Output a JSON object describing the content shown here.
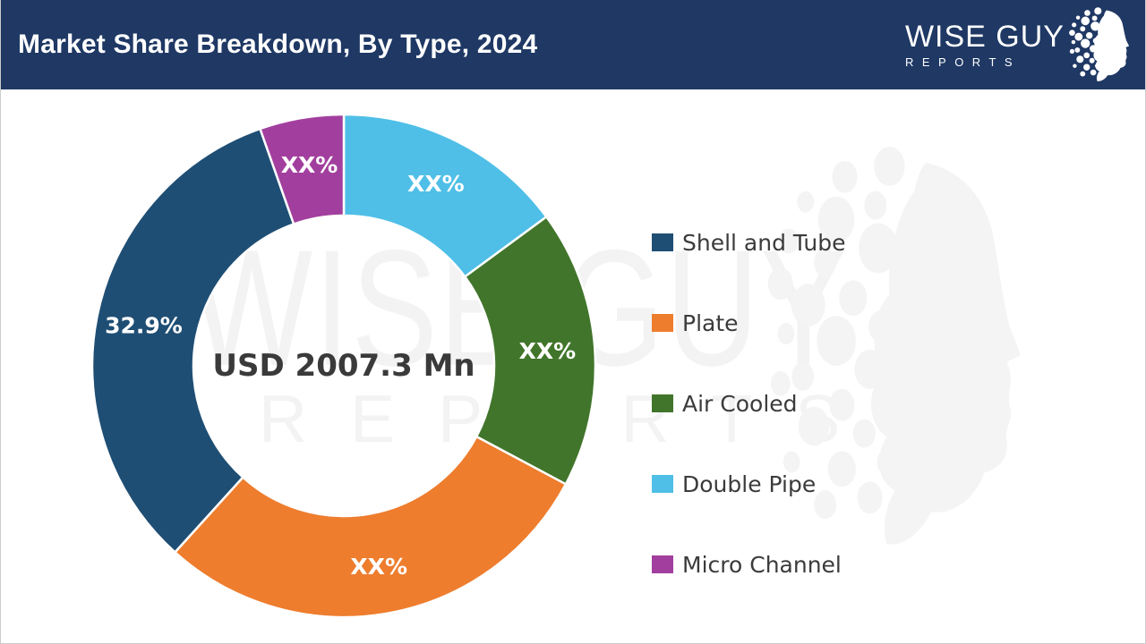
{
  "header": {
    "title": "Market Share Breakdown, By Type, 2024",
    "bg_color": "#1F3864",
    "logo": {
      "line1": "WISE GUY",
      "line2": "REPORTS"
    }
  },
  "watermark": {
    "line1": "WISE GUY",
    "line2": "REPORTS"
  },
  "chart_data": {
    "type": "donut",
    "title": "Market Share Breakdown, By Type, 2024",
    "center_label": "USD 2007.3 Mn",
    "start_angle_deg": 0,
    "direction": "clockwise",
    "draw_order": [
      "double_pipe",
      "air_cooled",
      "plate",
      "shell_and_tube",
      "micro_channel"
    ],
    "segments": [
      {
        "id": "shell_and_tube",
        "label": "Shell and Tube",
        "value_pct": 32.9,
        "display_label": "32.9%",
        "color": "#1F4E74"
      },
      {
        "id": "plate",
        "label": "Plate",
        "value_pct": 28.9,
        "display_label": "XX%",
        "color": "#EE7D2E"
      },
      {
        "id": "air_cooled",
        "label": "Air Cooled",
        "value_pct": 17.9,
        "display_label": "XX%",
        "color": "#41752B"
      },
      {
        "id": "double_pipe",
        "label": "Double Pipe",
        "value_pct": 14.9,
        "display_label": "XX%",
        "color": "#4FBFE7"
      },
      {
        "id": "micro_channel",
        "label": "Micro Channel",
        "value_pct": 5.4,
        "display_label": "XX%",
        "color": "#A23F9E"
      }
    ],
    "legend_position": "right",
    "slice_label_color": "#FFFFFF",
    "center_label_color": "#3A3A3A"
  }
}
